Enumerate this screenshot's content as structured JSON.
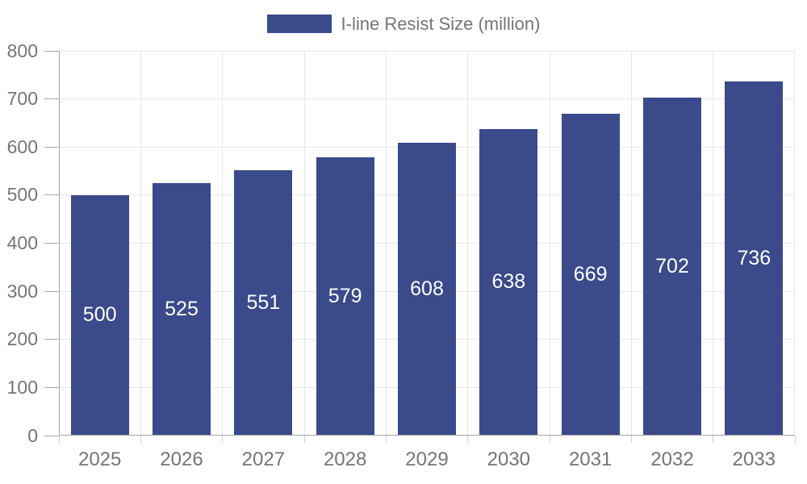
{
  "legend": {
    "label": "I-line Resist Size (million)"
  },
  "chart_data": {
    "type": "bar",
    "title": "I-line Resist Size (million)",
    "series_name": "I-line Resist Size (million)",
    "categories": [
      "2025",
      "2026",
      "2027",
      "2028",
      "2029",
      "2030",
      "2031",
      "2032",
      "2033"
    ],
    "values": [
      500,
      525,
      551,
      579,
      608,
      638,
      669,
      702,
      736
    ],
    "xlabel": "",
    "ylabel": "",
    "ylim": [
      0,
      800
    ],
    "ytick_step": 100,
    "grid": true,
    "legend_position": "top",
    "colors": {
      "bar": "#3A4A8B",
      "bar_value_text": "#ffffff",
      "axis_line": "#a6a6a6",
      "grid_line": "#e8e8e8",
      "x_tick_line": "#cfcfcf",
      "axis_text": "#757575"
    }
  }
}
